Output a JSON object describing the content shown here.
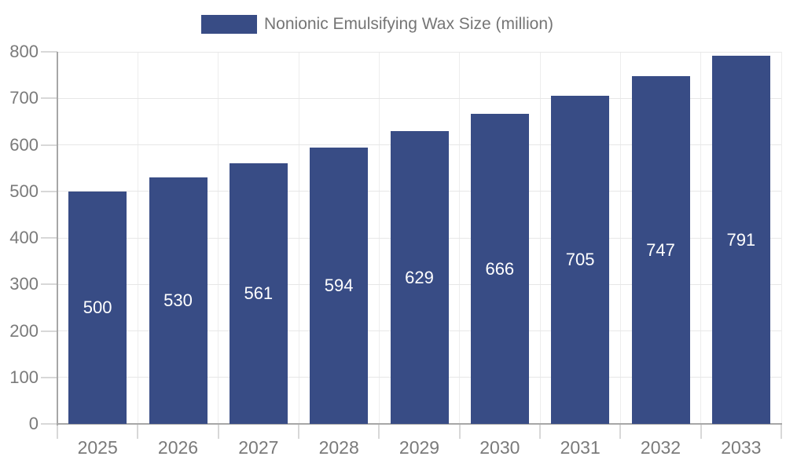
{
  "legend": {
    "label": "Nonionic Emulsifying Wax Size (million)"
  },
  "colors": {
    "bar": "#384C85",
    "axis_line": "#a7a7a7",
    "tick": "#d8d8d8",
    "gridline_h": "#e7e7e7",
    "gridline_v": "#ededed",
    "axis_label": "#7a7a7a",
    "legend_text": "#757575",
    "value_label": "#ffffff",
    "background": "#ffffff"
  },
  "chart_data": {
    "type": "bar",
    "title": "",
    "xlabel": "",
    "ylabel": "",
    "categories": [
      "2025",
      "2026",
      "2027",
      "2028",
      "2029",
      "2030",
      "2031",
      "2032",
      "2033"
    ],
    "values": [
      500,
      530,
      561,
      594,
      629,
      666,
      705,
      747,
      791
    ],
    "series_name": "Nonionic Emulsifying Wax Size (million)",
    "ylim": [
      0,
      800
    ],
    "yticks": [
      0,
      100,
      200,
      300,
      400,
      500,
      600,
      700,
      800
    ],
    "grid": true,
    "legend_position": "top-center",
    "value_label_position": "inside-center"
  }
}
